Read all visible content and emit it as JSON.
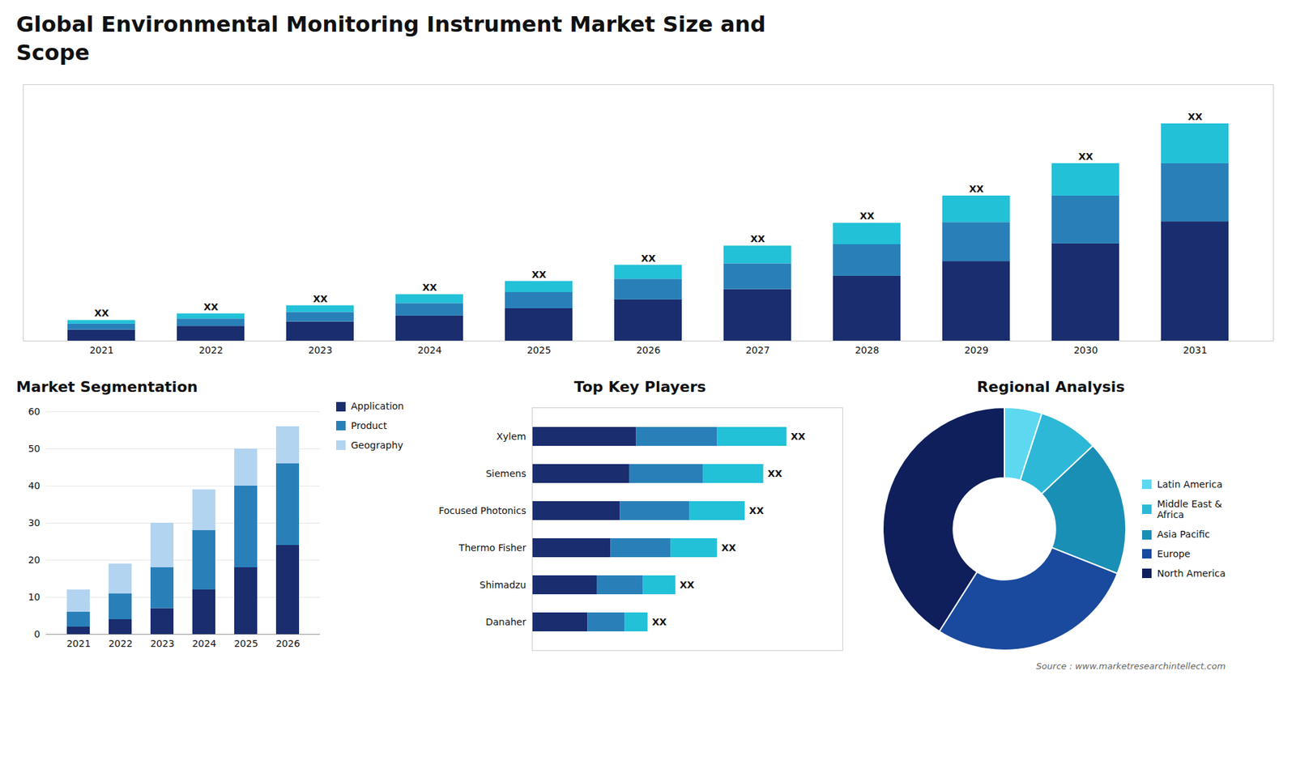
{
  "chart_data": [
    {
      "type": "bar",
      "title": "Global Environmental Monitoring Instrument Market Size and\nScope",
      "stacked": true,
      "categories": [
        "2021",
        "2022",
        "2023",
        "2024",
        "2025",
        "2026",
        "2027",
        "2028",
        "2029",
        "2030",
        "2031"
      ],
      "series": [
        {
          "color": "#1a2d6e",
          "values": [
            1.5,
            2.0,
            2.6,
            3.4,
            4.4,
            5.6,
            7.0,
            8.8,
            10.8,
            13.2,
            16.2
          ]
        },
        {
          "color": "#2980b9",
          "values": [
            0.8,
            1.0,
            1.3,
            1.7,
            2.2,
            2.8,
            3.5,
            4.3,
            5.3,
            6.5,
            7.9
          ]
        },
        {
          "color": "#22c1d8",
          "values": [
            0.5,
            0.7,
            0.9,
            1.2,
            1.5,
            1.9,
            2.4,
            2.9,
            3.6,
            4.4,
            5.4
          ],
          "value_labels": [
            "XX",
            "XX",
            "XX",
            "XX",
            "XX",
            "XX",
            "XX",
            "XX",
            "XX",
            "XX",
            "XX"
          ]
        }
      ],
      "ylim": [
        0,
        34.81
      ],
      "yticks": [],
      "tick_labels": "x",
      "grid": false
    },
    {
      "type": "bar",
      "title": "Market Segmentation",
      "stacked": true,
      "categories": [
        "2021",
        "2022",
        "2023",
        "2024",
        "2025",
        "2026"
      ],
      "series": [
        {
          "name": "Application",
          "color": "#1a2d6e",
          "values": [
            2,
            4,
            7,
            12,
            18,
            24
          ]
        },
        {
          "name": "Product",
          "color": "#2980b9",
          "values": [
            4,
            7,
            11,
            16,
            22,
            22
          ]
        },
        {
          "name": "Geography",
          "color": "#b3d4f0",
          "values": [
            6,
            8,
            12,
            11,
            10,
            10
          ]
        }
      ],
      "ylim": [
        0,
        60
      ],
      "yticks": [
        0,
        10,
        20,
        30,
        40,
        50,
        60
      ],
      "grid": true,
      "legend": "right"
    },
    {
      "type": "bar",
      "title": "Top Key Players",
      "orientation": "horizontal",
      "stacked": true,
      "categories": [
        "Xylem",
        "Siemens",
        "Focused Photonics",
        "Thermo Fisher",
        "Shimadzu",
        "Danaher"
      ],
      "series": [
        {
          "color": "#1a2d6e",
          "values": [
            4.5,
            4.2,
            3.8,
            3.4,
            2.8,
            2.4
          ]
        },
        {
          "color": "#2980b9",
          "values": [
            3.5,
            3.2,
            3.0,
            2.6,
            2.0,
            1.6
          ]
        },
        {
          "color": "#22c1d8",
          "values": [
            3.0,
            2.6,
            2.4,
            2.0,
            1.4,
            1.0
          ],
          "value_labels": [
            "XX",
            "XX",
            "XX",
            "XX",
            "XX",
            "XX"
          ]
        }
      ],
      "xlim": [
        0,
        13.42
      ],
      "xticks": [],
      "tick_labels": "y",
      "grid": false
    },
    {
      "type": "pie",
      "title": "Regional Analysis",
      "categories": [
        "Latin America",
        "Middle East &\nAfrica",
        "Asia Pacific",
        "Europe",
        "North America"
      ],
      "values": [
        5,
        8,
        18,
        28,
        41
      ],
      "colors": [
        "#5dd8f0",
        "#2db8d8",
        "#1a8fb5",
        "#1a4a9e",
        "#0f1f5c"
      ],
      "legend": "right",
      "caption": "Source : www.marketresearchintellect.com"
    }
  ]
}
